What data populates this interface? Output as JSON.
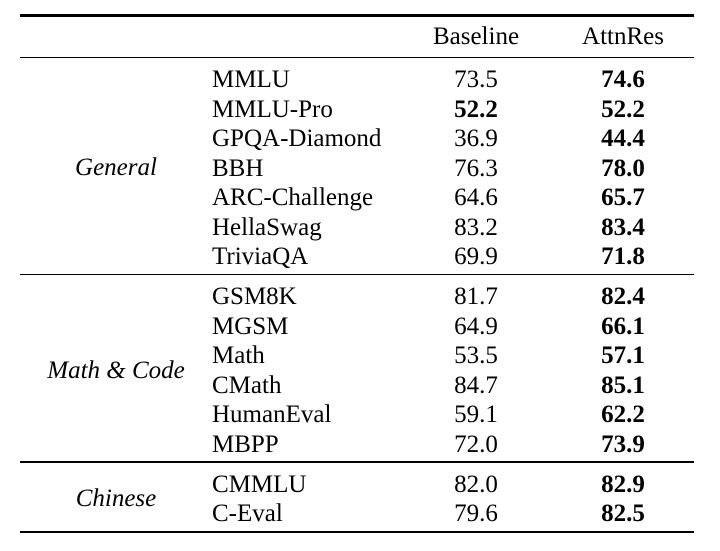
{
  "table": {
    "header": {
      "baseline_label": "Baseline",
      "attnres_label": "AttnRes"
    },
    "rule_color": "#000000",
    "background_color": "#ffffff",
    "text_color": "#000000",
    "sections": [
      {
        "group": "General",
        "rows": [
          {
            "name": "MMLU",
            "baseline": "73.5",
            "attnres": "74.6",
            "baseline_bold": false,
            "attnres_bold": true
          },
          {
            "name": "MMLU-Pro",
            "baseline": "52.2",
            "attnres": "52.2",
            "baseline_bold": true,
            "attnres_bold": true
          },
          {
            "name": "GPQA-Diamond",
            "baseline": "36.9",
            "attnres": "44.4",
            "baseline_bold": false,
            "attnres_bold": true
          },
          {
            "name": "BBH",
            "baseline": "76.3",
            "attnres": "78.0",
            "baseline_bold": false,
            "attnres_bold": true
          },
          {
            "name": "ARC-Challenge",
            "baseline": "64.6",
            "attnres": "65.7",
            "baseline_bold": false,
            "attnres_bold": true
          },
          {
            "name": "HellaSwag",
            "baseline": "83.2",
            "attnres": "83.4",
            "baseline_bold": false,
            "attnres_bold": true
          },
          {
            "name": "TriviaQA",
            "baseline": "69.9",
            "attnres": "71.8",
            "baseline_bold": false,
            "attnres_bold": true
          }
        ]
      },
      {
        "group": "Math & Code",
        "rows": [
          {
            "name": "GSM8K",
            "baseline": "81.7",
            "attnres": "82.4",
            "baseline_bold": false,
            "attnres_bold": true
          },
          {
            "name": "MGSM",
            "baseline": "64.9",
            "attnres": "66.1",
            "baseline_bold": false,
            "attnres_bold": true
          },
          {
            "name": "Math",
            "baseline": "53.5",
            "attnres": "57.1",
            "baseline_bold": false,
            "attnres_bold": true
          },
          {
            "name": "CMath",
            "baseline": "84.7",
            "attnres": "85.1",
            "baseline_bold": false,
            "attnres_bold": true
          },
          {
            "name": "HumanEval",
            "baseline": "59.1",
            "attnres": "62.2",
            "baseline_bold": false,
            "attnres_bold": true
          },
          {
            "name": "MBPP",
            "baseline": "72.0",
            "attnres": "73.9",
            "baseline_bold": false,
            "attnres_bold": true
          }
        ]
      },
      {
        "group": "Chinese",
        "rows": [
          {
            "name": "CMMLU",
            "baseline": "82.0",
            "attnres": "82.9",
            "baseline_bold": false,
            "attnres_bold": true
          },
          {
            "name": "C-Eval",
            "baseline": "79.6",
            "attnres": "82.5",
            "baseline_bold": false,
            "attnres_bold": true
          }
        ]
      }
    ]
  }
}
